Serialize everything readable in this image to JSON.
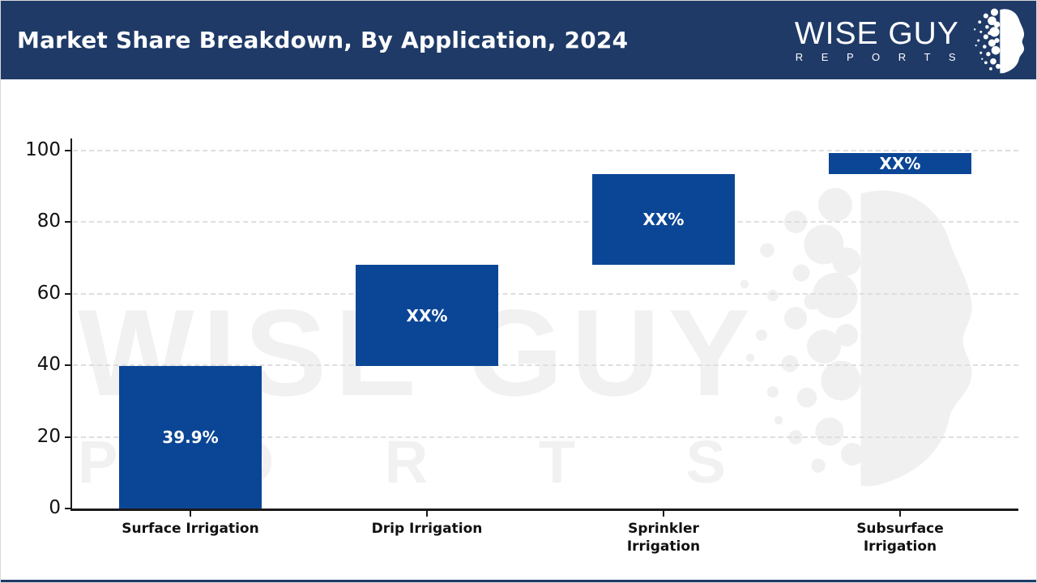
{
  "header": {
    "title": "Market Share Breakdown, By Application, 2024",
    "bg_color": "#1f3a67",
    "logo": {
      "line1": "WISE GUY",
      "line2": "R E P O R T S"
    }
  },
  "watermark": {
    "line1": "WISE GUY",
    "line2": "P O R T S"
  },
  "chart_data": {
    "type": "bar",
    "subtype": "floating-waterfall-segments",
    "title": "Market Share Breakdown, By Application, 2024",
    "categories": [
      "Surface Irrigation",
      "Drip Irrigation",
      "Sprinkler Irrigation",
      "Subsurface Irrigation"
    ],
    "segments": [
      {
        "category": "Surface Irrigation",
        "label_lines": [
          "Surface Irrigation"
        ],
        "start": 0,
        "end": 39.9,
        "value_label": "39.9%"
      },
      {
        "category": "Drip Irrigation",
        "label_lines": [
          "Drip Irrigation"
        ],
        "start": 39.9,
        "end": 68.0,
        "value_label": "XX%"
      },
      {
        "category": "Sprinkler Irrigation",
        "label_lines": [
          "Sprinkler",
          "Irrigation"
        ],
        "start": 68.0,
        "end": 93.5,
        "value_label": "XX%"
      },
      {
        "category": "Subsurface Irrigation",
        "label_lines": [
          "Subsurface",
          "Irrigation"
        ],
        "start": 93.5,
        "end": 99.4,
        "value_label": "XX%"
      }
    ],
    "y_ticks": [
      0,
      20,
      40,
      60,
      80,
      100
    ],
    "ylim": [
      0,
      103
    ],
    "xlabel": "",
    "ylabel": "",
    "grid": "dashed-horizontal",
    "legend": "none",
    "bar_color": "#0b4696",
    "label_color": "#ffffff",
    "axis_color": "#1a1a1a"
  }
}
